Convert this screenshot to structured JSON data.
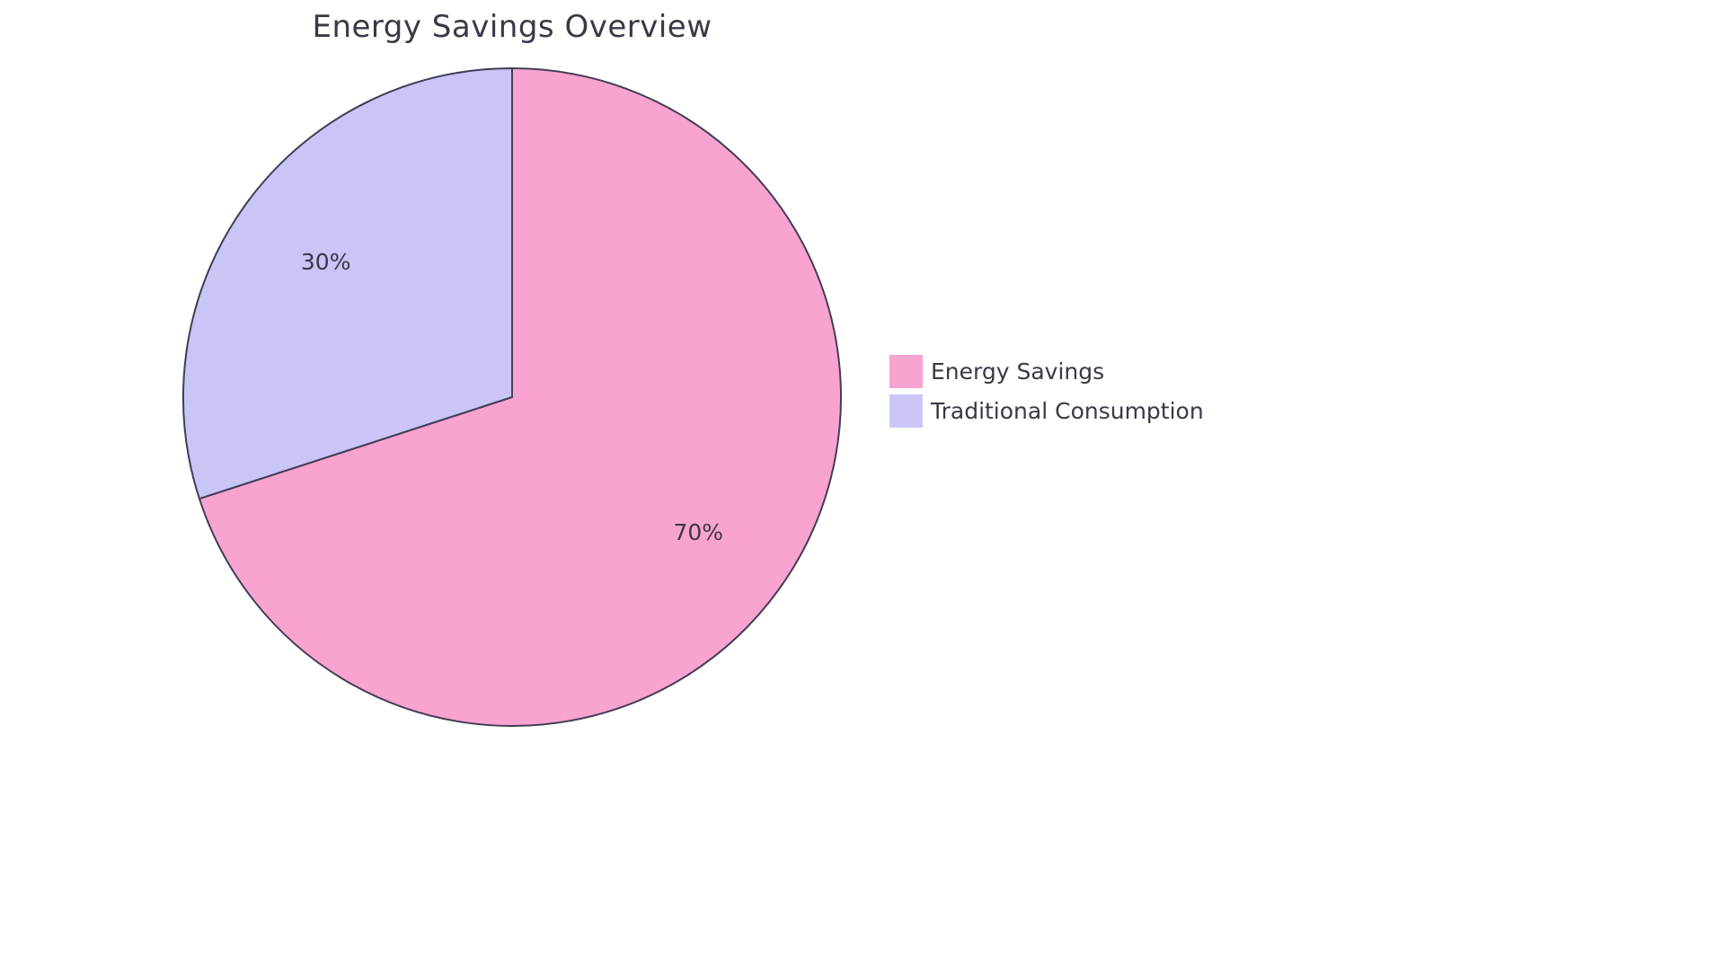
{
  "chart_data": {
    "type": "pie",
    "title": "Energy Savings Overview",
    "slices": [
      {
        "label": "Energy Savings",
        "value": 70,
        "value_label": "70%",
        "color": "#F9A3D0"
      },
      {
        "label": "Traditional Consumption",
        "value": 30,
        "value_label": "30%",
        "color": "#C9C5F6"
      }
    ],
    "stroke_color": "#413D56",
    "label_color": "#3A3847",
    "legend_position": "right",
    "start_angle_deg": -90,
    "direction": "clockwise",
    "background": "#FFFFFF"
  }
}
